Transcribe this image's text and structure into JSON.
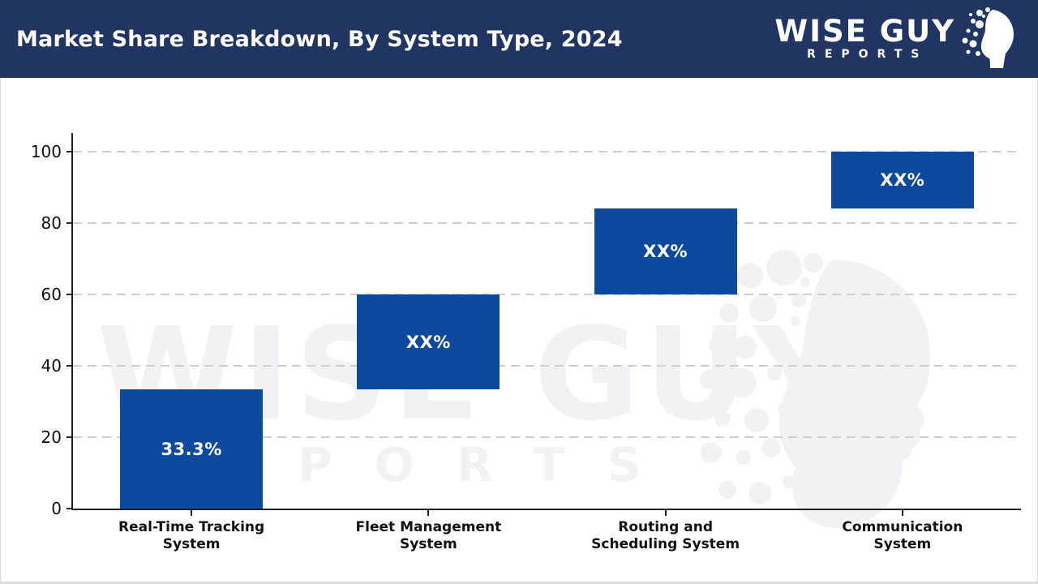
{
  "header": {
    "title": "Market Share Breakdown, By System Type, 2024",
    "logo": {
      "line1": "WISE GUY",
      "line2": "REPORTS"
    }
  },
  "watermark": {
    "line1": "WISE GUY",
    "line2": "REPORTS"
  },
  "colors": {
    "header_background": "#213563",
    "bar_fill": "#0c4a9e",
    "bar_label": "#ffffff",
    "gridline": "#cfcfcf",
    "axis": "#222222",
    "watermark": "#f1f2f4"
  },
  "chart_data": {
    "type": "bar",
    "subtype": "waterfall",
    "title": "Market Share Breakdown, By System Type, 2024",
    "xlabel": "",
    "ylabel": "",
    "categories": [
      "Real-Time Tracking\nSystem",
      "Fleet Management\nSystem",
      "Routing and\nScheduling System",
      "Communication\nSystem"
    ],
    "segments": [
      {
        "category": "Real-Time Tracking System",
        "start": 0,
        "end": 33.3,
        "label": "33.3%"
      },
      {
        "category": "Fleet Management System",
        "start": 33.3,
        "end": 60,
        "label": "XX%"
      },
      {
        "category": "Routing and Scheduling System",
        "start": 60,
        "end": 84,
        "label": "XX%"
      },
      {
        "category": "Communication System",
        "start": 84,
        "end": 100,
        "label": "XX%"
      }
    ],
    "yticks": [
      0,
      20,
      40,
      60,
      80,
      100
    ],
    "ylim": [
      0,
      105
    ],
    "grid": "horizontal-dashed",
    "legend": "none"
  }
}
